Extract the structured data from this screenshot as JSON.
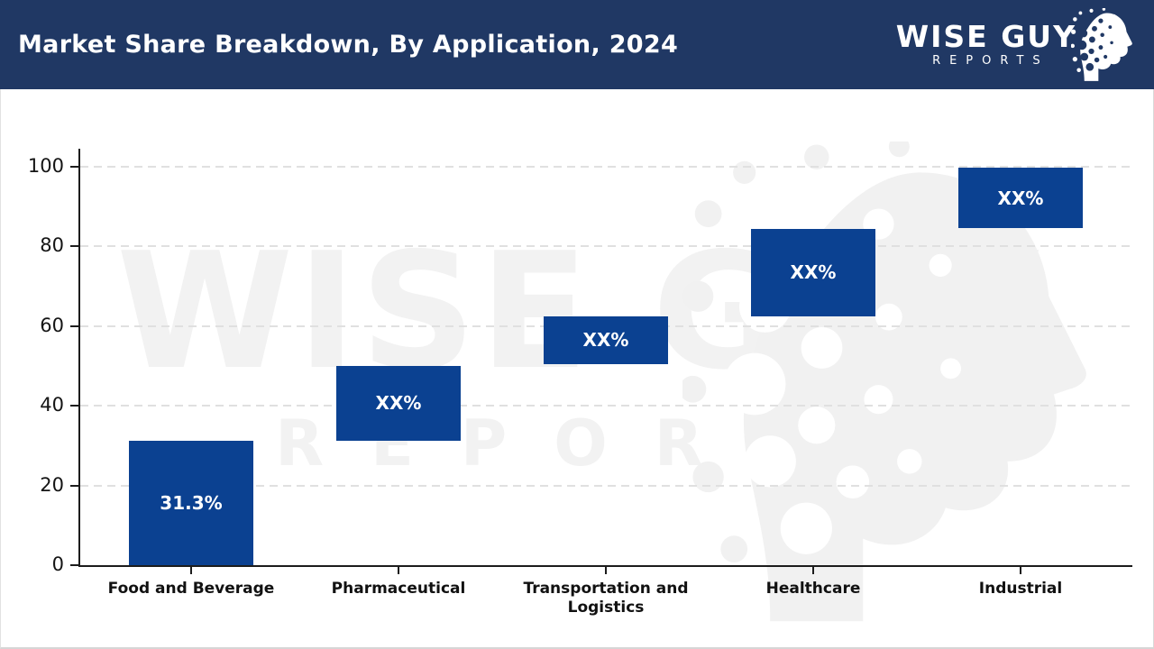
{
  "header": {
    "title": "Market Share Breakdown, By Application, 2024",
    "background": "#203864",
    "logo": {
      "wordmark": "WISE GUY",
      "subtext": "REPORTS"
    }
  },
  "watermark": {
    "line1": "WISE GUY",
    "line2": "REPORTS"
  },
  "chart_data": {
    "type": "bar",
    "subtype": "waterfall",
    "title": "Market Share Breakdown, By Application, 2024",
    "categories": [
      "Food and Beverage",
      "Pharmaceutical",
      "Transportation and Logistics",
      "Healthcare",
      "Industrial"
    ],
    "segments": [
      {
        "category": "Food and Beverage",
        "start": 0,
        "end": 31.3,
        "label": "31.3%"
      },
      {
        "category": "Pharmaceutical",
        "start": 31.3,
        "end": 50.0,
        "label": "XX%"
      },
      {
        "category": "Transportation and Logistics",
        "start": 50.4,
        "end": 62.5,
        "label": "XX%"
      },
      {
        "category": "Healthcare",
        "start": 62.5,
        "end": 84.4,
        "label": "XX%"
      },
      {
        "category": "Industrial",
        "start": 84.5,
        "end": 99.8,
        "label": "XX%"
      }
    ],
    "yticks": [
      0,
      20,
      40,
      60,
      80,
      100
    ],
    "ylim": [
      0,
      104.5
    ],
    "xlabel": "",
    "ylabel": "",
    "grid": "horizontal-dashed",
    "legend": "none",
    "bar_color": "#0b4191",
    "bar_label_color": "#ffffff"
  }
}
